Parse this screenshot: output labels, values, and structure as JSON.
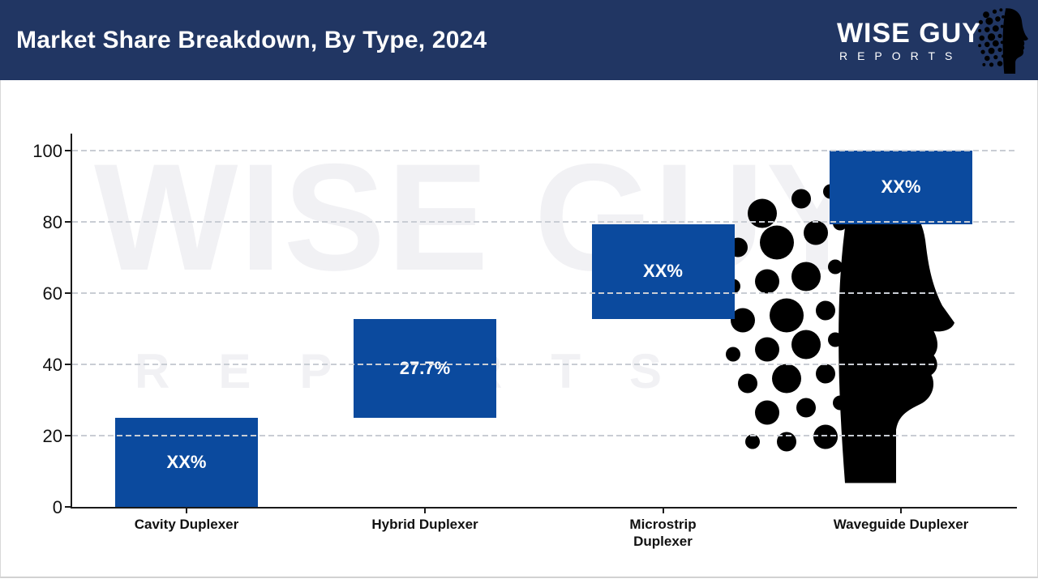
{
  "header": {
    "title": "Market Share Breakdown, By Type, 2024",
    "logo": {
      "name": "WISE GUY",
      "sub": "REPORTS"
    }
  },
  "watermark": {
    "name": "WISE GUY",
    "sub": "REPORTS"
  },
  "colors": {
    "header_bg": "#213663",
    "bar": "#0b4a9e",
    "grid": "#c9cdd4",
    "axis": "#1a1a1a",
    "watermark": "#f1f1f4",
    "bar_label": "#ffffff"
  },
  "chart_data": {
    "type": "bar",
    "variant": "floating-waterfall",
    "title": "Market Share Breakdown, By Type, 2024",
    "unit": "%",
    "categories": [
      "Cavity Duplexer",
      "Hybrid Duplexer",
      "Microstrip\nDuplexer",
      "Waveguide Duplexer"
    ],
    "series": [
      {
        "name": "Market share",
        "segments": [
          {
            "category": "Cavity Duplexer",
            "start": 0,
            "end": 25.0,
            "label": "XX%"
          },
          {
            "category": "Hybrid Duplexer",
            "start": 25.0,
            "end": 52.7,
            "label": "27.7%"
          },
          {
            "category": "Microstrip Duplexer",
            "start": 52.7,
            "end": 79.4,
            "label": "XX%"
          },
          {
            "category": "Waveguide Duplexer",
            "start": 79.4,
            "end": 100.0,
            "label": "XX%"
          }
        ]
      }
    ],
    "xlabel": "",
    "ylabel": "",
    "ylim": [
      0,
      105
    ],
    "yticks": [
      0,
      20,
      40,
      60,
      80,
      100
    ],
    "grid": "horizontal-dashed",
    "legend": "none"
  }
}
